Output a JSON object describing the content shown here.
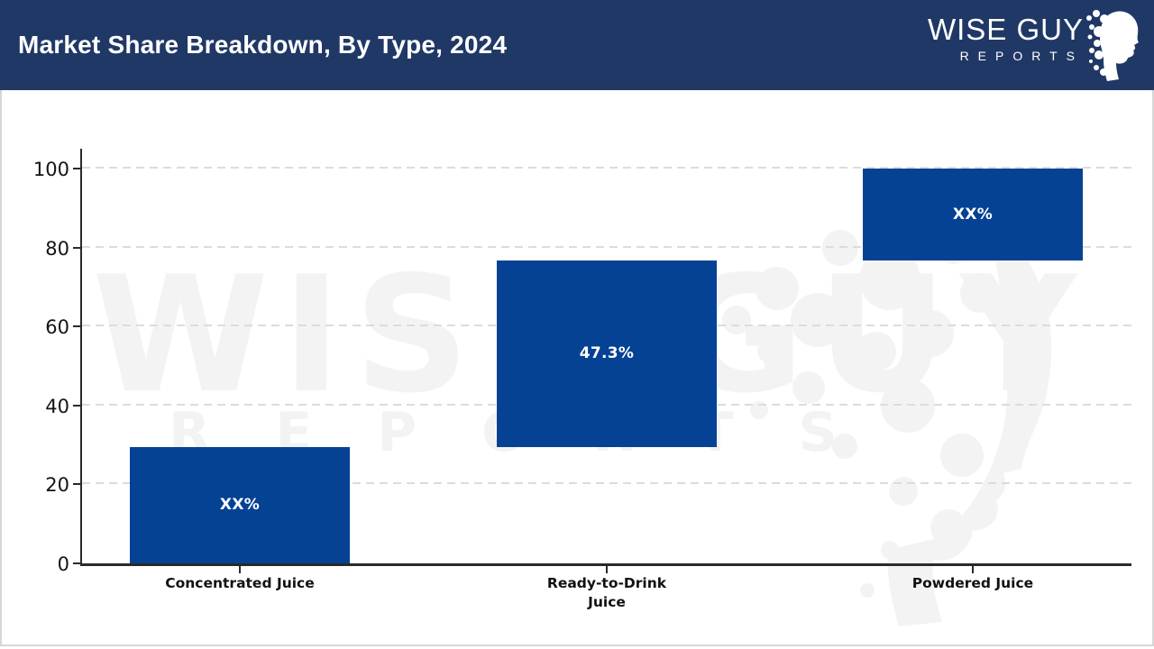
{
  "header": {
    "title": "Market Share Breakdown, By Type, 2024",
    "logo": {
      "line1": "WISE GUY",
      "line2": "REPORTS"
    }
  },
  "watermark": {
    "line1": "WISE GUY",
    "line2": "REPORTS"
  },
  "colors": {
    "header_bg": "#203866",
    "bar": "#054294",
    "gridline": "#dcdcdc",
    "axis": "#2a2a2a",
    "bar_label": "#ffffff",
    "watermark": "#f3f3f3"
  },
  "chart_data": {
    "type": "bar",
    "subtype": "waterfall",
    "title": "Market Share Breakdown, By Type, 2024",
    "xlabel": "",
    "ylabel": "",
    "ylim": [
      0,
      105
    ],
    "yticks": [
      0,
      20,
      40,
      60,
      80,
      100
    ],
    "grid": "horizontal dashed",
    "legend": "none",
    "categories": [
      "Concentrated Juice",
      "Ready-to-Drink Juice",
      "Powdered Juice"
    ],
    "bars": [
      {
        "category": "Concentrated Juice",
        "start": 0,
        "end": 29.5,
        "value": 29.5,
        "label": "XX%"
      },
      {
        "category": "Ready-to-Drink Juice",
        "start": 29.5,
        "end": 76.8,
        "value": 47.3,
        "label": "47.3%"
      },
      {
        "category": "Powdered Juice",
        "start": 76.8,
        "end": 100,
        "value": 23.2,
        "label": "XX%"
      }
    ]
  }
}
